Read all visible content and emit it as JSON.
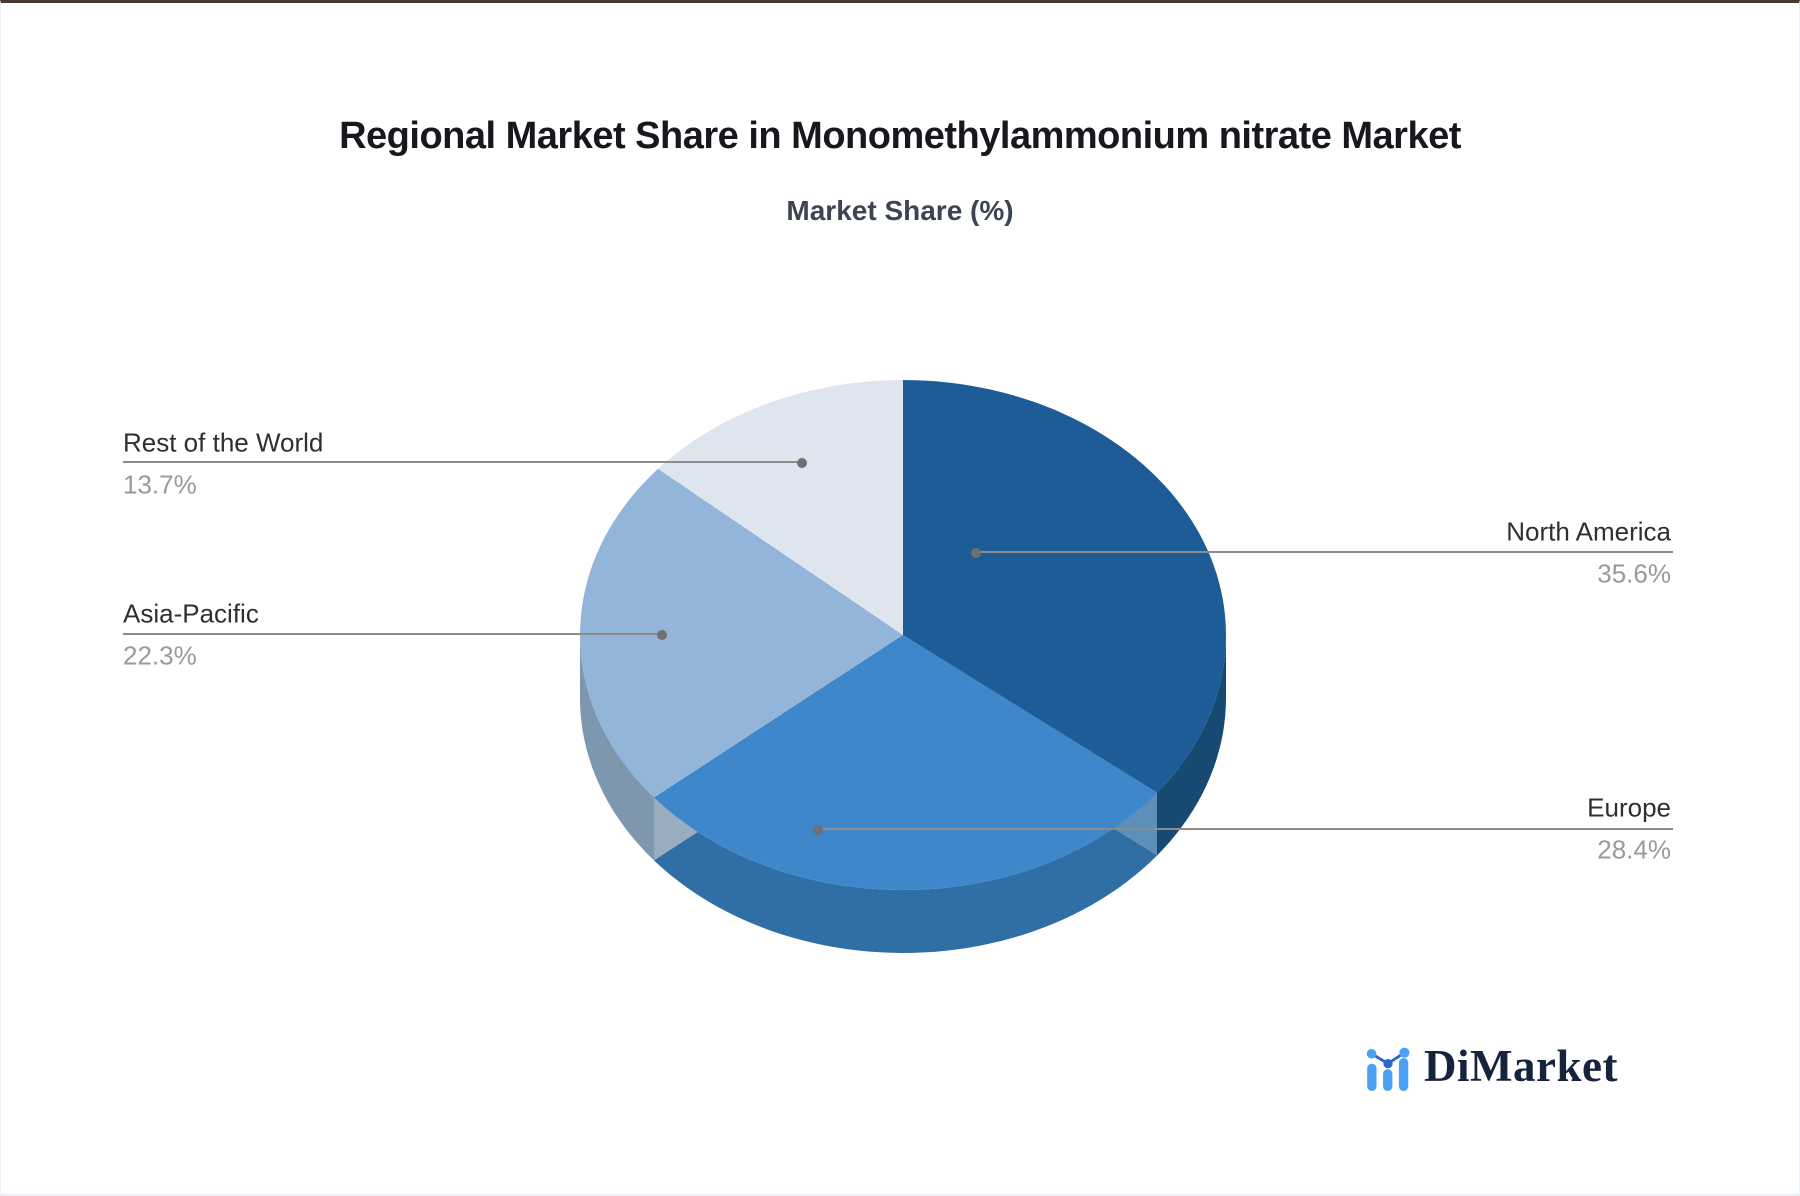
{
  "title": "Regional Market Share in Monomethylammonium nitrate Market",
  "subtitle": "Market Share (%)",
  "chart_data": {
    "type": "pie",
    "title": "Regional Market Share in Monomethylammonium nitrate Market",
    "subtitle": "Market Share (%)",
    "unit": "%",
    "effect": "3d",
    "start_angle_deg": 90,
    "direction": "clockwise",
    "legend": "none",
    "slices": [
      {
        "label": "North America",
        "value": 35.6,
        "display": "35.6%",
        "color": "#1e5c98",
        "side_color": "#174a73",
        "label_side": "right"
      },
      {
        "label": "Europe",
        "value": 28.4,
        "display": "28.4%",
        "color": "#3d87ca",
        "side_color": "#2f6fa5",
        "label_side": "right"
      },
      {
        "label": "Asia-Pacific",
        "value": 22.3,
        "display": "22.3%",
        "color": "#93b5d9",
        "side_color": "#7e96ae",
        "label_side": "left"
      },
      {
        "label": "Rest of the World",
        "value": 13.7,
        "display": "13.7%",
        "color": "#dfe5ef",
        "side_color": "#c7d0dd",
        "label_side": "left"
      }
    ],
    "style": {
      "label_color": "#2f2f2f",
      "value_color": "#9a9a9a",
      "leader_line_color": "#8c8c8c",
      "leader_dot_color": "#6f6f6f"
    }
  },
  "branding": {
    "logo_text": "DiMarket",
    "logo_icon": "bar-chart-icon",
    "icon_bar_color": "#4aa0f4",
    "icon_accent_color": "#2d67cd",
    "text_color": "#16233c"
  }
}
